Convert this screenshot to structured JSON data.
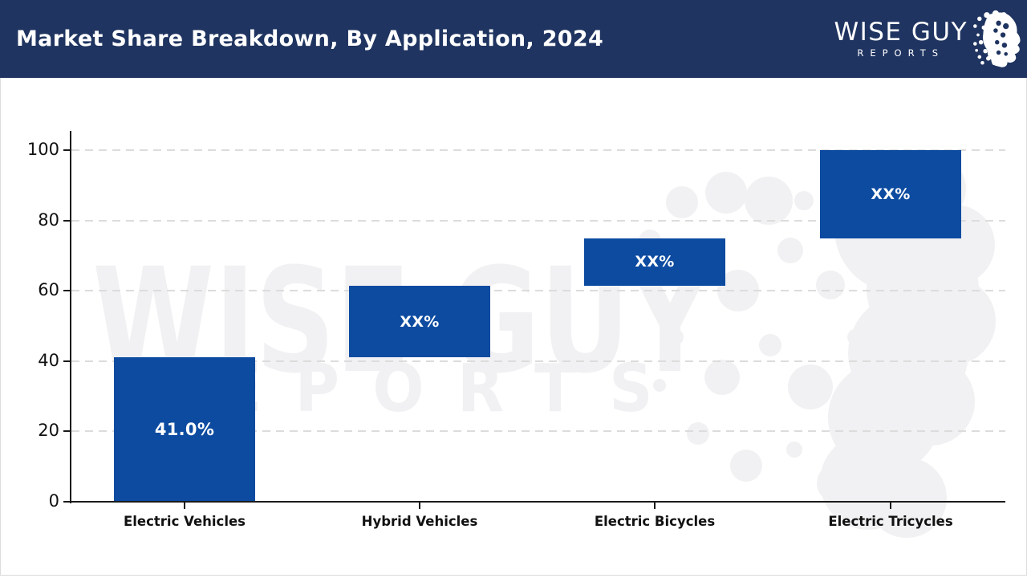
{
  "header": {
    "title": "Market Share Breakdown, By Application, 2024",
    "logo": {
      "line1": "WISE GUY",
      "line2": "REPORTS"
    }
  },
  "watermark": {
    "line1": "WISE GUY",
    "line2": "REPORTS"
  },
  "chart_data": {
    "type": "bar",
    "subtype": "waterfall",
    "title": "Market Share Breakdown, By Application, 2024",
    "categories": [
      "Electric Vehicles",
      "Hybrid Vehicles",
      "Electric Bicycles",
      "Electric Tricycles"
    ],
    "segments": [
      {
        "category": "Electric Vehicles",
        "start": 0,
        "end": 41,
        "label": "41.0%"
      },
      {
        "category": "Hybrid Vehicles",
        "start": 41,
        "end": 61.5,
        "label": "XX%"
      },
      {
        "category": "Electric Bicycles",
        "start": 61.5,
        "end": 75,
        "label": "XX%"
      },
      {
        "category": "Electric Tricycles",
        "start": 75,
        "end": 100,
        "label": "XX%"
      }
    ],
    "yticks": [
      0,
      20,
      40,
      60,
      80,
      100
    ],
    "ylim": [
      0,
      105
    ],
    "xlabel": "",
    "ylabel": "",
    "grid": "horizontal-dashed",
    "legend": "none",
    "colors": {
      "bar": "#0c4ba0",
      "bar_label": "#ffffff",
      "grid": "#dcdcdc",
      "axis": "#1a1a1a",
      "tick_label": "#111111",
      "header_bg": "#1f3460",
      "header_text": "#ffffff",
      "watermark": "#f1f1f3"
    }
  }
}
